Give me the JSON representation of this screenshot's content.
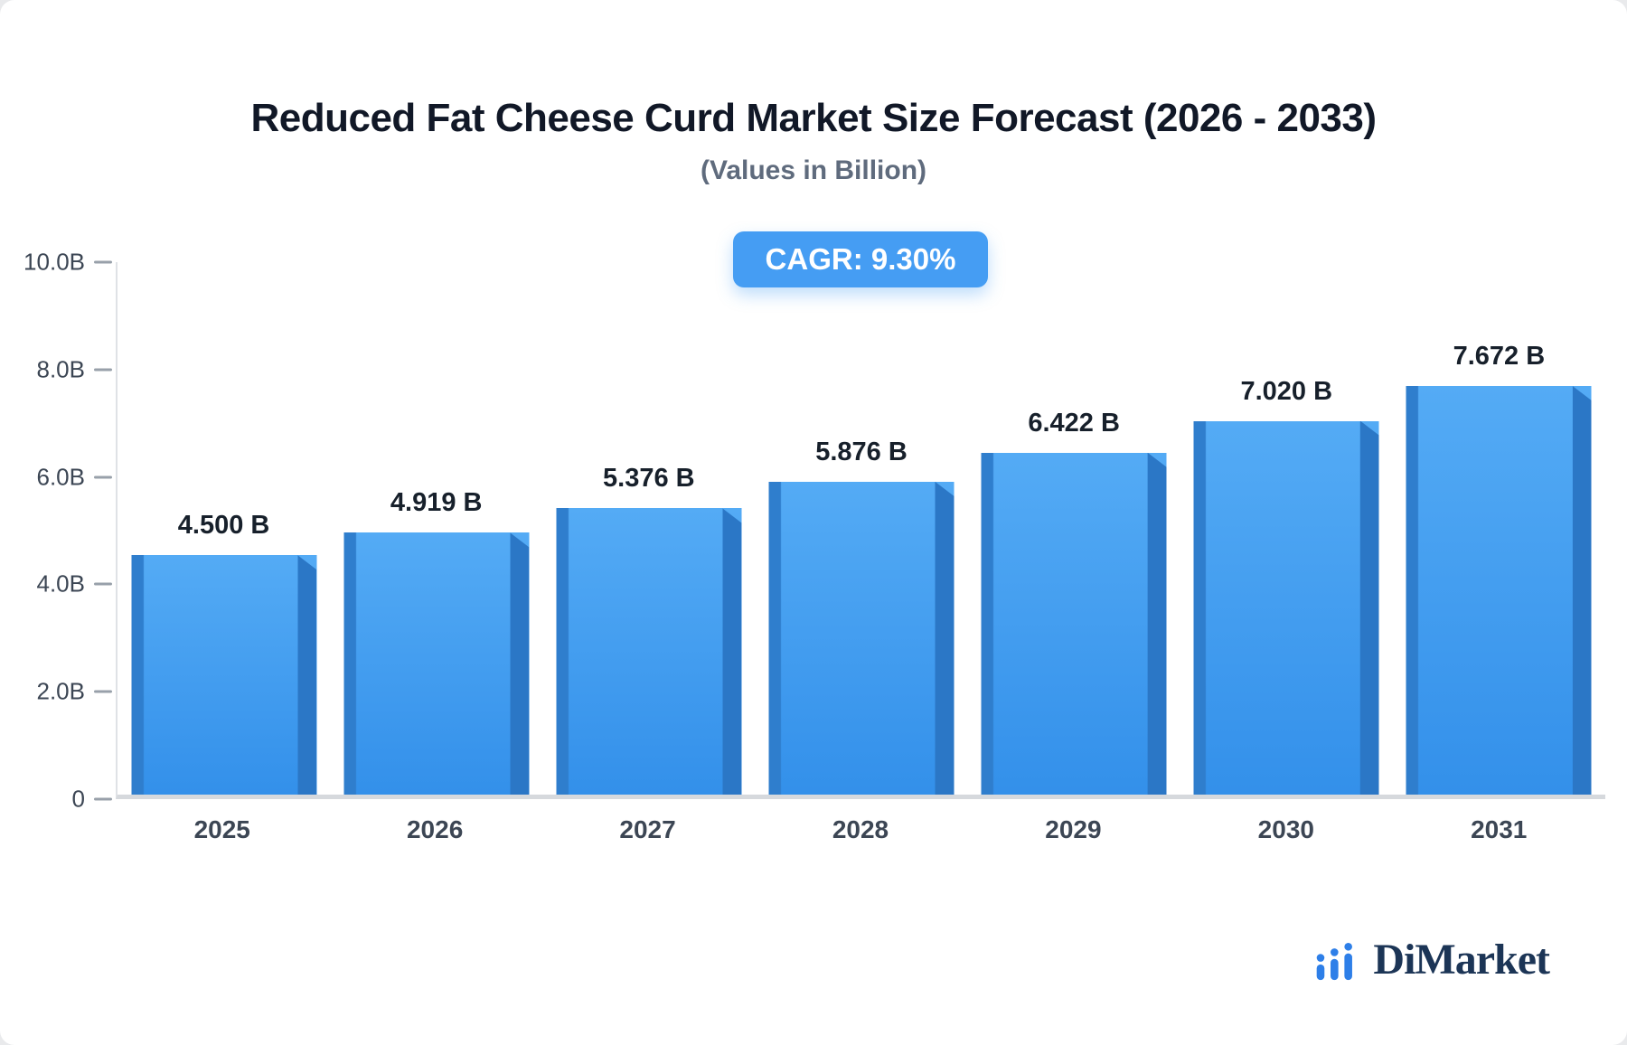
{
  "header": {
    "title": "Reduced Fat Cheese Curd Market Size Forecast (2026 - 2033)",
    "subtitle": "(Values in Billion)"
  },
  "badge": {
    "label": "CAGR: 9.30%"
  },
  "logo": {
    "text": "DiMarket"
  },
  "colors": {
    "badge_bg": "#459DF3",
    "bar_front_top": "#54ABF5",
    "bar_front_bottom": "#3390EA",
    "bar_left_strip": "#2F7ECD",
    "bar_side": "#2B77C6",
    "title_color": "#111827",
    "subtitle_color": "#5F6B7D",
    "tick_text": "#3C4654",
    "value_text": "#17202B",
    "axis_color": "#D6D9DD",
    "logo_navy": "#1C3556",
    "logo_blue": "#2E7FE8"
  },
  "chart_data": {
    "type": "bar",
    "title": "Reduced Fat Cheese Curd Market Size Forecast (2026 - 2033)",
    "subtitle": "(Values in Billion)",
    "categories": [
      "2025",
      "2026",
      "2027",
      "2028",
      "2029",
      "2030",
      "2031"
    ],
    "values": [
      4.5,
      4.919,
      5.376,
      5.876,
      6.422,
      7.02,
      7.672
    ],
    "value_labels": [
      "4.500 B",
      "4.919 B",
      "5.376 B",
      "5.876 B",
      "6.422 B",
      "7.020 B",
      "7.672 B"
    ],
    "xlabel": "",
    "ylabel": "",
    "ylim": [
      0,
      10
    ],
    "y_tick_values": [
      0,
      2,
      4,
      6,
      8,
      10
    ],
    "y_tick_labels": [
      "0",
      "2.0B",
      "4.0B",
      "6.0B",
      "8.0B",
      "10.0B"
    ],
    "grid": false,
    "legend": false,
    "annotations": [
      "CAGR: 9.30%"
    ]
  }
}
